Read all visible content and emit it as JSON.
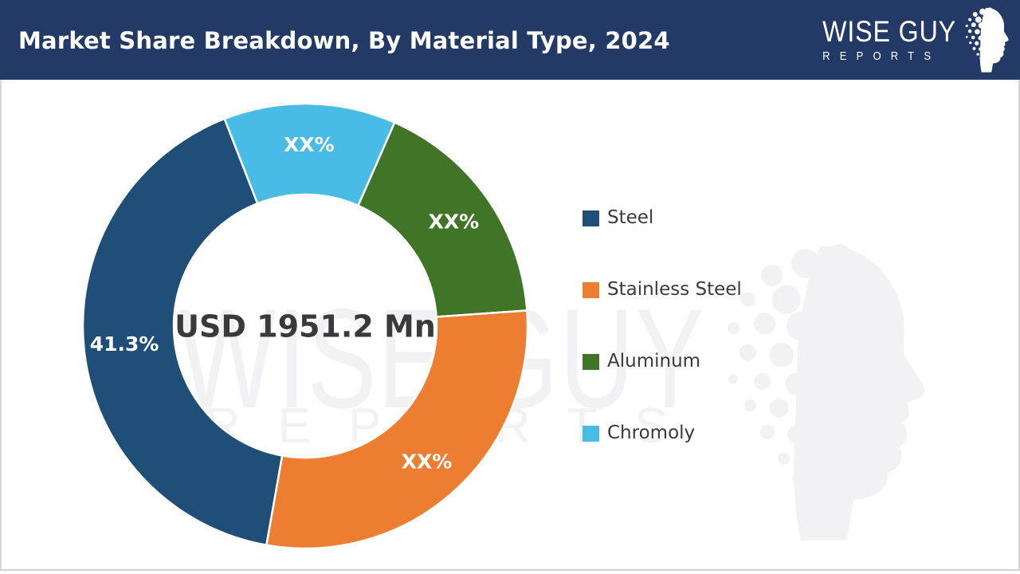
{
  "header": {
    "title": "Market Share Breakdown, By Material Type, 2024",
    "logo": {
      "line1": "WISE GUY",
      "line2": "REPORTS"
    }
  },
  "watermark": {
    "line1": "WISE GUY",
    "line2": "REPORTS"
  },
  "chart_data": {
    "type": "pie",
    "subtype": "donut",
    "title": "Market Share Breakdown, By Material Type, 2024",
    "center_label": "USD 1951.2 Mn",
    "legend_position": "right",
    "segments": [
      {
        "name": "Steel",
        "label": "41.3%",
        "percent": 41.3,
        "color": "#1F4E79"
      },
      {
        "name": "Stainless Steel",
        "label": "XX%",
        "percent": 28.9,
        "color": "#ED7D31"
      },
      {
        "name": "Aluminum",
        "label": "XX%",
        "percent": 17.3,
        "color": "#407527"
      },
      {
        "name": "Chromoly",
        "label": "XX%",
        "percent": 12.5,
        "color": "#49BCE5"
      }
    ],
    "draw_order": [
      "Aluminum",
      "Chromoly",
      "Steel",
      "Stainless Steel"
    ],
    "start_angle_deg": 4,
    "direction": "counterclockwise"
  },
  "colors": {
    "header_bg": "#233A66",
    "text_dark": "#3a3a3a",
    "watermark": "#f2f2f4",
    "separator": "#ffffff",
    "border": "#d5d5d5"
  }
}
